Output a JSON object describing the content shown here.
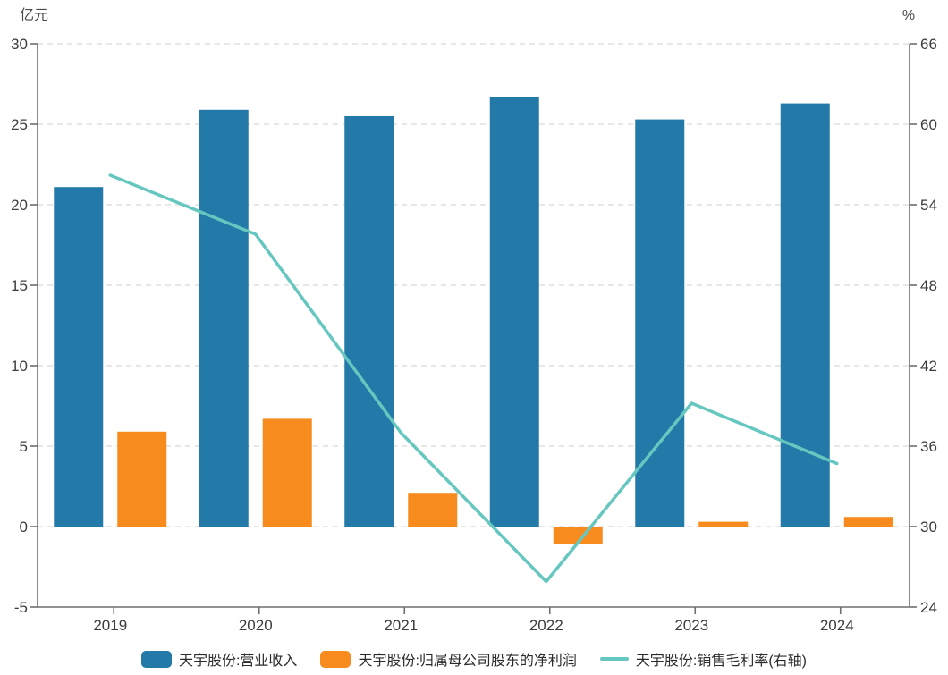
{
  "chart_data": {
    "type": "bar",
    "title": "",
    "categories": [
      "2019",
      "2020",
      "2021",
      "2022",
      "2023",
      "2024"
    ],
    "series": [
      {
        "name": "天宇股份:营业收入",
        "type": "bar",
        "axis": "left",
        "color": "#2379a7",
        "values": [
          21.1,
          25.9,
          25.5,
          26.7,
          25.3,
          26.3
        ]
      },
      {
        "name": "天宇股份:归属母公司股东的净利润",
        "type": "bar",
        "axis": "left",
        "color": "#f78b1e",
        "values": [
          5.9,
          6.7,
          2.1,
          -1.1,
          0.3,
          0.6
        ]
      },
      {
        "name": "天宇股份:销售毛利率(右轴)",
        "type": "line",
        "axis": "right",
        "color": "#66c7c0",
        "values": [
          56.2,
          51.8,
          37.0,
          25.9,
          39.2,
          34.7
        ]
      }
    ],
    "left_axis": {
      "label": "亿元",
      "min": -5,
      "max": 30,
      "tick_step": 5
    },
    "right_axis": {
      "label": "%",
      "min": 24,
      "max": 66,
      "tick_step": 6
    },
    "grid": true,
    "grid_color": "#e4e4e4",
    "axis_color": "#6e6e6e",
    "tick_label_color": "#3c3c3c",
    "legend_position": "bottom"
  }
}
